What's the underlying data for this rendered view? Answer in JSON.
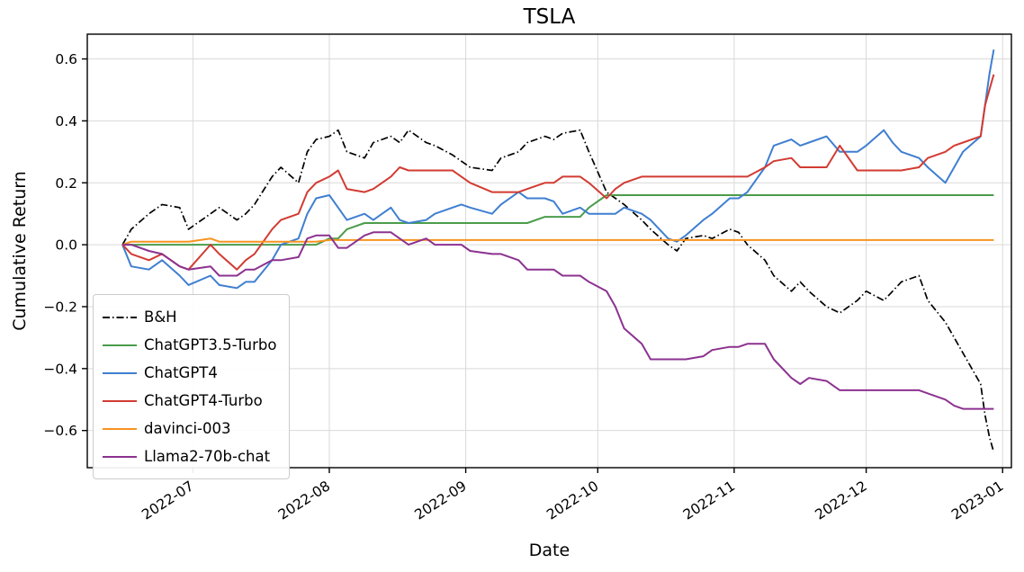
{
  "figure": {
    "kind": "matplotlib-line-figure"
  },
  "chart_data": {
    "type": "line",
    "title": "TSLA",
    "xlabel": "Date",
    "ylabel": "Cumulative Return",
    "grid": true,
    "legend_position": "lower left",
    "xlim": [
      "2022-06-07",
      "2023-01-03"
    ],
    "ylim": [
      -0.72,
      0.68
    ],
    "xticks": [
      {
        "date": "2022-07-01",
        "label": "2022-07"
      },
      {
        "date": "2022-08-01",
        "label": "2022-08"
      },
      {
        "date": "2022-09-01",
        "label": "2022-09"
      },
      {
        "date": "2022-10-01",
        "label": "2022-10"
      },
      {
        "date": "2022-11-01",
        "label": "2022-11"
      },
      {
        "date": "2022-12-01",
        "label": "2022-12"
      },
      {
        "date": "2023-01-01",
        "label": "2023-01"
      }
    ],
    "yticks": [
      {
        "value": -0.6,
        "label": "−0.6"
      },
      {
        "value": -0.4,
        "label": "−0.4"
      },
      {
        "value": -0.2,
        "label": "−0.2"
      },
      {
        "value": 0.0,
        "label": "0.0"
      },
      {
        "value": 0.2,
        "label": "0.2"
      },
      {
        "value": 0.4,
        "label": "0.4"
      },
      {
        "value": 0.6,
        "label": "0.6"
      }
    ],
    "x": [
      "2022-06-15",
      "2022-06-17",
      "2022-06-21",
      "2022-06-24",
      "2022-06-28",
      "2022-06-30",
      "2022-07-05",
      "2022-07-07",
      "2022-07-11",
      "2022-07-13",
      "2022-07-15",
      "2022-07-19",
      "2022-07-21",
      "2022-07-25",
      "2022-07-27",
      "2022-07-29",
      "2022-08-01",
      "2022-08-03",
      "2022-08-05",
      "2022-08-09",
      "2022-08-11",
      "2022-08-15",
      "2022-08-17",
      "2022-08-19",
      "2022-08-23",
      "2022-08-25",
      "2022-08-29",
      "2022-08-31",
      "2022-09-02",
      "2022-09-07",
      "2022-09-09",
      "2022-09-13",
      "2022-09-15",
      "2022-09-19",
      "2022-09-21",
      "2022-09-23",
      "2022-09-27",
      "2022-09-29",
      "2022-10-03",
      "2022-10-05",
      "2022-10-07",
      "2022-10-11",
      "2022-10-13",
      "2022-10-17",
      "2022-10-19",
      "2022-10-21",
      "2022-10-25",
      "2022-10-27",
      "2022-10-31",
      "2022-11-02",
      "2022-11-04",
      "2022-11-08",
      "2022-11-10",
      "2022-11-14",
      "2022-11-16",
      "2022-11-18",
      "2022-11-22",
      "2022-11-25",
      "2022-11-29",
      "2022-12-01",
      "2022-12-05",
      "2022-12-07",
      "2022-12-09",
      "2022-12-13",
      "2022-12-15",
      "2022-12-19",
      "2022-12-21",
      "2022-12-23",
      "2022-12-27",
      "2022-12-28",
      "2022-12-29",
      "2022-12-30"
    ],
    "series": [
      {
        "name": "B&H",
        "color": "#000000",
        "style": "dashdot",
        "values": [
          0.0,
          0.05,
          0.1,
          0.13,
          0.12,
          0.05,
          0.1,
          0.12,
          0.08,
          0.1,
          0.13,
          0.22,
          0.25,
          0.2,
          0.3,
          0.34,
          0.35,
          0.37,
          0.3,
          0.28,
          0.33,
          0.35,
          0.33,
          0.37,
          0.33,
          0.32,
          0.29,
          0.27,
          0.25,
          0.24,
          0.28,
          0.3,
          0.33,
          0.35,
          0.34,
          0.36,
          0.37,
          0.3,
          0.17,
          0.15,
          0.13,
          0.08,
          0.05,
          0.0,
          -0.02,
          0.02,
          0.03,
          0.02,
          0.05,
          0.04,
          0.0,
          -0.05,
          -0.1,
          -0.15,
          -0.12,
          -0.15,
          -0.2,
          -0.22,
          -0.18,
          -0.15,
          -0.18,
          -0.15,
          -0.12,
          -0.1,
          -0.18,
          -0.25,
          -0.3,
          -0.35,
          -0.45,
          -0.55,
          -0.62,
          -0.67
        ]
      },
      {
        "name": "ChatGPT3.5-Turbo",
        "color": "#4b9c4b",
        "style": "solid",
        "values": [
          0.0,
          0.0,
          0.0,
          0.0,
          0.0,
          0.0,
          0.0,
          0.0,
          0.0,
          0.0,
          0.0,
          0.0,
          0.0,
          0.0,
          0.0,
          0.0,
          0.02,
          0.02,
          0.05,
          0.07,
          0.07,
          0.07,
          0.07,
          0.07,
          0.07,
          0.07,
          0.07,
          0.07,
          0.07,
          0.07,
          0.07,
          0.07,
          0.07,
          0.09,
          0.09,
          0.09,
          0.09,
          0.12,
          0.16,
          0.16,
          0.16,
          0.16,
          0.16,
          0.16,
          0.16,
          0.16,
          0.16,
          0.16,
          0.16,
          0.16,
          0.16,
          0.16,
          0.16,
          0.16,
          0.16,
          0.16,
          0.16,
          0.16,
          0.16,
          0.16,
          0.16,
          0.16,
          0.16,
          0.16,
          0.16,
          0.16,
          0.16,
          0.16,
          0.16,
          0.16,
          0.16,
          0.16
        ]
      },
      {
        "name": "ChatGPT4",
        "color": "#3f7fd0",
        "style": "solid",
        "values": [
          0.0,
          -0.07,
          -0.08,
          -0.05,
          -0.1,
          -0.13,
          -0.1,
          -0.13,
          -0.14,
          -0.12,
          -0.12,
          -0.05,
          0.0,
          0.02,
          0.1,
          0.15,
          0.16,
          0.12,
          0.08,
          0.1,
          0.08,
          0.12,
          0.08,
          0.07,
          0.08,
          0.1,
          0.12,
          0.13,
          0.12,
          0.1,
          0.13,
          0.17,
          0.15,
          0.15,
          0.14,
          0.1,
          0.12,
          0.1,
          0.1,
          0.1,
          0.12,
          0.1,
          0.08,
          0.02,
          0.01,
          0.03,
          0.08,
          0.1,
          0.15,
          0.15,
          0.17,
          0.25,
          0.32,
          0.34,
          0.32,
          0.33,
          0.35,
          0.3,
          0.3,
          0.32,
          0.37,
          0.33,
          0.3,
          0.28,
          0.25,
          0.2,
          0.25,
          0.3,
          0.35,
          0.45,
          0.55,
          0.63
        ]
      },
      {
        "name": "ChatGPT4-Turbo",
        "color": "#d23b32",
        "style": "solid",
        "values": [
          0.0,
          -0.03,
          -0.05,
          -0.03,
          -0.07,
          -0.08,
          0.0,
          -0.03,
          -0.08,
          -0.05,
          -0.03,
          0.05,
          0.08,
          0.1,
          0.17,
          0.2,
          0.22,
          0.24,
          0.18,
          0.17,
          0.18,
          0.22,
          0.25,
          0.24,
          0.24,
          0.24,
          0.24,
          0.22,
          0.2,
          0.17,
          0.17,
          0.17,
          0.18,
          0.2,
          0.2,
          0.22,
          0.22,
          0.2,
          0.15,
          0.18,
          0.2,
          0.22,
          0.22,
          0.22,
          0.22,
          0.22,
          0.22,
          0.22,
          0.22,
          0.22,
          0.22,
          0.25,
          0.27,
          0.28,
          0.25,
          0.25,
          0.25,
          0.32,
          0.24,
          0.24,
          0.24,
          0.24,
          0.24,
          0.25,
          0.28,
          0.3,
          0.32,
          0.33,
          0.35,
          0.45,
          0.5,
          0.55
        ]
      },
      {
        "name": "davinci-003",
        "color": "#f79321",
        "style": "solid",
        "values": [
          0.0,
          0.01,
          0.01,
          0.01,
          0.01,
          0.01,
          0.02,
          0.01,
          0.01,
          0.01,
          0.01,
          0.01,
          0.01,
          0.01,
          0.01,
          0.01,
          0.015,
          0.015,
          0.015,
          0.015,
          0.015,
          0.015,
          0.015,
          0.015,
          0.015,
          0.015,
          0.015,
          0.015,
          0.015,
          0.015,
          0.015,
          0.015,
          0.015,
          0.015,
          0.015,
          0.015,
          0.015,
          0.015,
          0.015,
          0.015,
          0.015,
          0.015,
          0.015,
          0.015,
          0.015,
          0.015,
          0.015,
          0.015,
          0.015,
          0.015,
          0.015,
          0.015,
          0.015,
          0.015,
          0.015,
          0.015,
          0.015,
          0.015,
          0.015,
          0.015,
          0.015,
          0.015,
          0.015,
          0.015,
          0.015,
          0.015,
          0.015,
          0.015,
          0.015,
          0.015,
          0.015,
          0.015
        ]
      },
      {
        "name": "Llama2-70b-chat",
        "color": "#8c3290",
        "style": "solid",
        "values": [
          0.0,
          0.0,
          -0.02,
          -0.03,
          -0.07,
          -0.08,
          -0.07,
          -0.1,
          -0.1,
          -0.08,
          -0.08,
          -0.05,
          -0.05,
          -0.04,
          0.02,
          0.03,
          0.03,
          -0.01,
          -0.01,
          0.03,
          0.04,
          0.04,
          0.02,
          0.0,
          0.02,
          0.0,
          0.0,
          0.0,
          -0.02,
          -0.03,
          -0.03,
          -0.05,
          -0.08,
          -0.08,
          -0.08,
          -0.1,
          -0.1,
          -0.12,
          -0.15,
          -0.2,
          -0.27,
          -0.32,
          -0.37,
          -0.37,
          -0.37,
          -0.37,
          -0.36,
          -0.34,
          -0.33,
          -0.33,
          -0.32,
          -0.32,
          -0.37,
          -0.43,
          -0.45,
          -0.43,
          -0.44,
          -0.47,
          -0.47,
          -0.47,
          -0.47,
          -0.47,
          -0.47,
          -0.47,
          -0.48,
          -0.5,
          -0.52,
          -0.53,
          -0.53,
          -0.53,
          -0.53,
          -0.53
        ]
      }
    ]
  }
}
